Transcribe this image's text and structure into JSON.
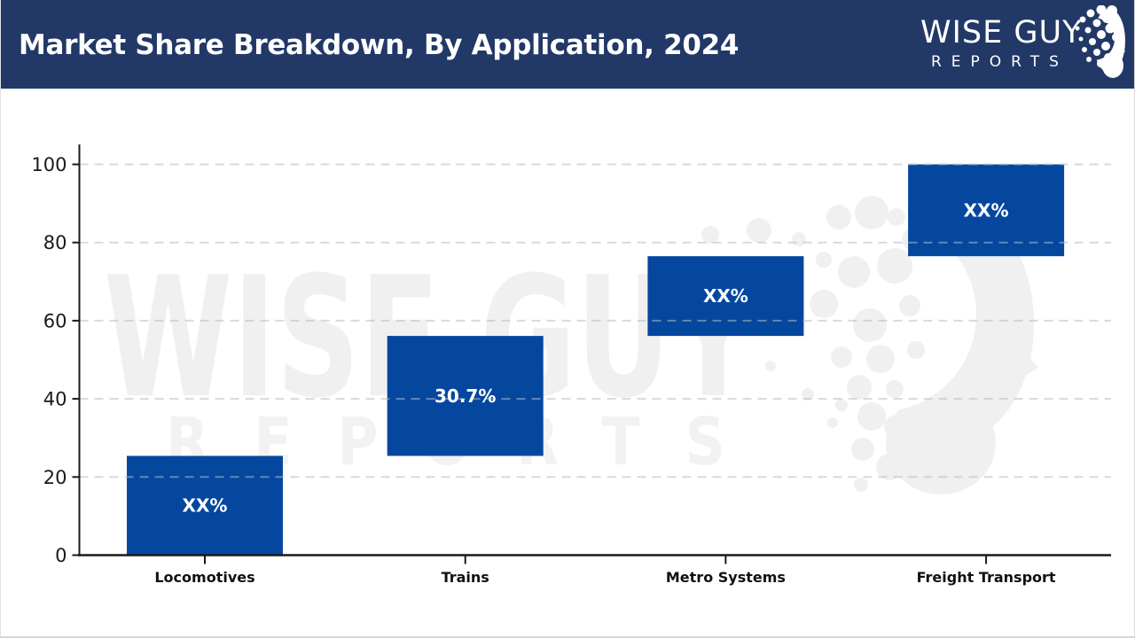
{
  "header": {
    "title": "Market Share Breakdown, By Application, 2024",
    "logo": {
      "primary": "WISE GUY",
      "secondary": "REPORTS"
    }
  },
  "watermark": {
    "primary": "WISE GUY",
    "secondary": "REPORTS"
  },
  "colors": {
    "header_bg": "#223866",
    "bar": "#05479f",
    "bar_label": "#ffffff",
    "axis": "#1a1a1a",
    "category_label": "#111111",
    "gridline": "rgba(180,187,199,0.55)",
    "watermark": "#f0f0f0"
  },
  "chart_data": {
    "type": "bar",
    "subtype": "waterfall",
    "title": "Market Share Breakdown, By Application, 2024",
    "categories": [
      "Locomotives",
      "Trains",
      "Metro Systems",
      "Freight Transport"
    ],
    "segments": [
      {
        "category": "Locomotives",
        "from": 0,
        "to": 25.4,
        "label": "XX%"
      },
      {
        "category": "Trains",
        "from": 25.4,
        "to": 56.1,
        "label": "30.7%"
      },
      {
        "category": "Metro Systems",
        "from": 56.1,
        "to": 76.5,
        "label": "XX%"
      },
      {
        "category": "Freight Transport",
        "from": 76.5,
        "to": 100,
        "label": "XX%"
      }
    ],
    "yticks": [
      0,
      20,
      40,
      60,
      80,
      100
    ],
    "ylim": [
      0,
      105
    ],
    "xlabel": "",
    "ylabel": "",
    "grid": "dashed-horizontal",
    "legend": null
  }
}
